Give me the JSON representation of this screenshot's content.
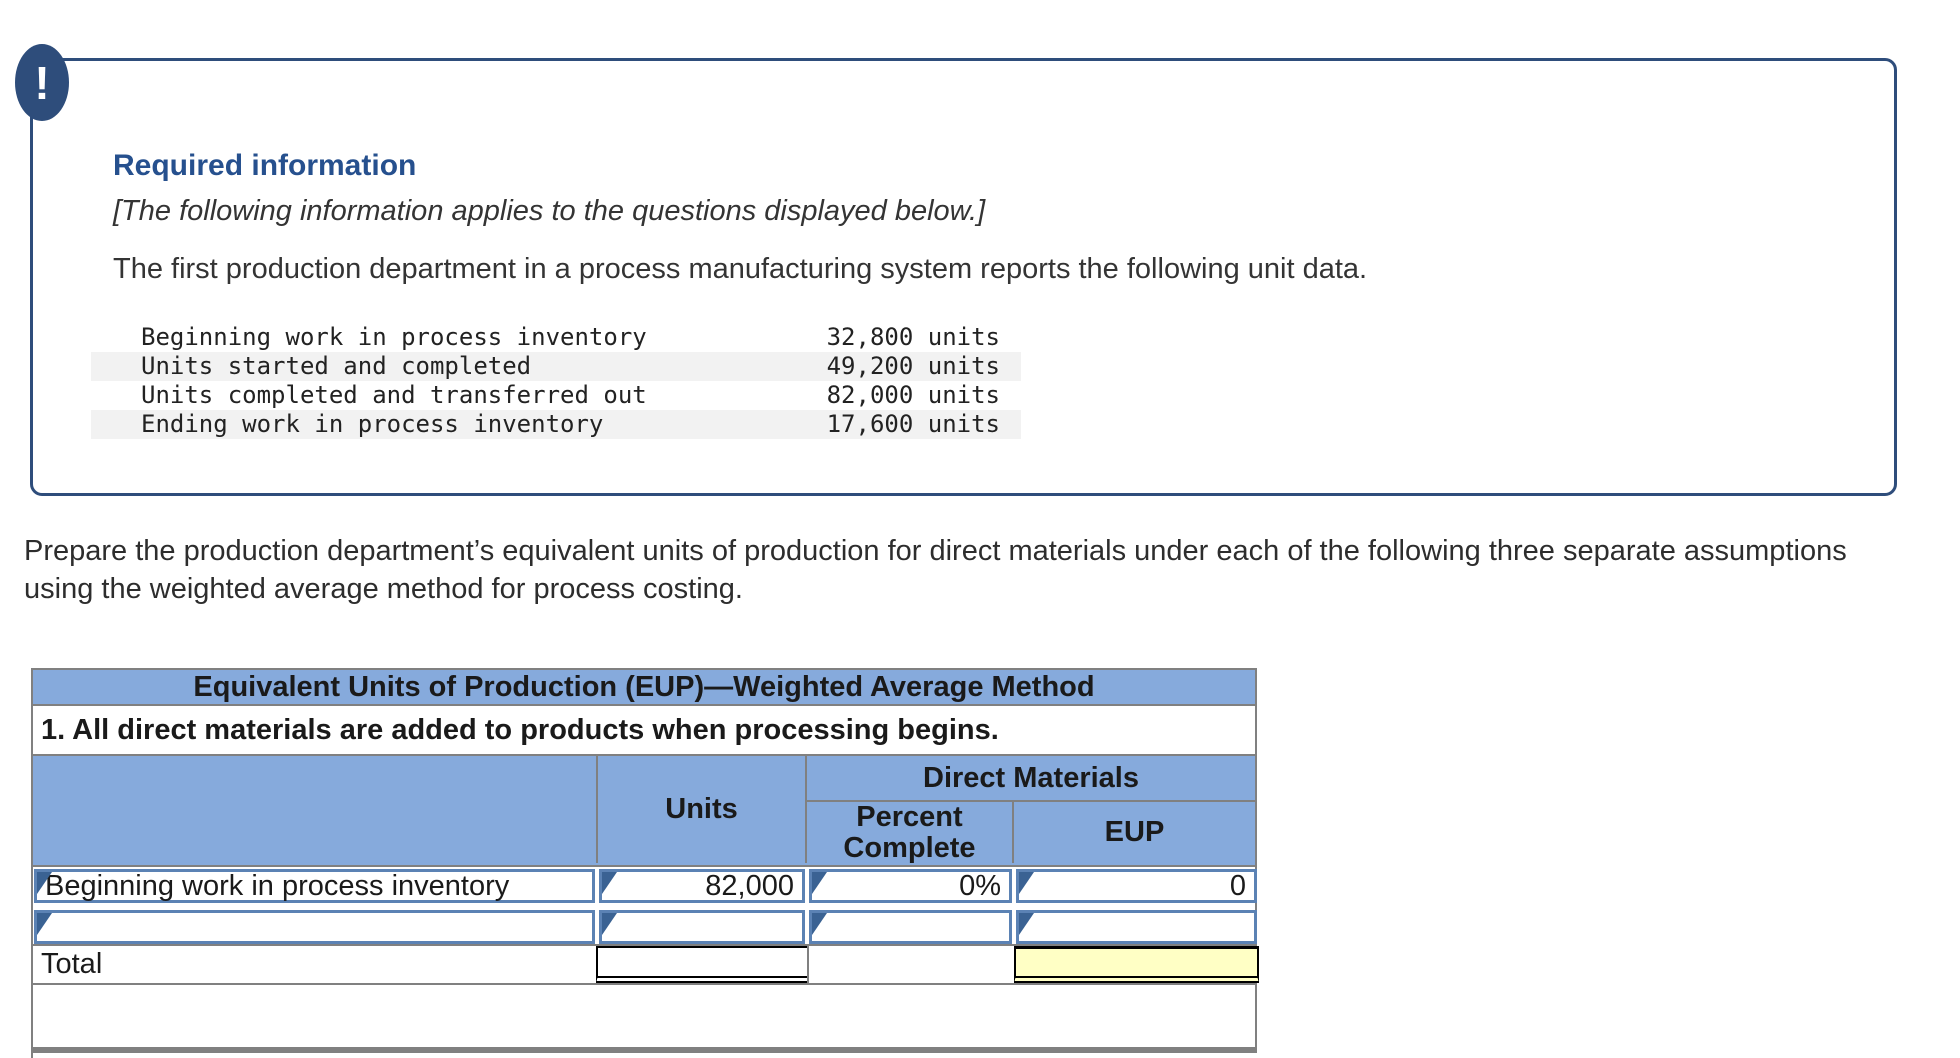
{
  "colors": {
    "box_border": "#2E4D7B",
    "heading_blue": "#26508E",
    "table_header_blue": "#86AADC",
    "input_border_blue": "#5B82B4",
    "input_marker_blue": "#3A6293",
    "highlight_yellow": "#FFFFC5",
    "grid_gray": "#808080",
    "row_shade_gray": "#F2F2F2"
  },
  "info_box": {
    "badge": "!",
    "heading": "Required information",
    "note": "[The following information applies to the questions displayed below.]",
    "intro": "The first production department in a process manufacturing system reports the following unit data.",
    "unit_table": {
      "rows": [
        {
          "label": "Beginning work in process inventory",
          "value": "32,800 units"
        },
        {
          "label": "Units started and completed",
          "value": "49,200 units"
        },
        {
          "label": "Units completed and transferred out",
          "value": "82,000 units"
        },
        {
          "label": "Ending work in process inventory",
          "value": "17,600 units"
        }
      ]
    }
  },
  "question": "Prepare the production department’s equivalent units of production for direct materials under each of the following three separate assumptions using the weighted average method for process costing.",
  "worksheet": {
    "title": "Equivalent Units of Production (EUP)—Weighted Average Method",
    "assumption": "1. All direct materials are added to products when processing begins.",
    "columns": {
      "units": "Units",
      "group": "Direct Materials",
      "percent": "Percent Complete",
      "eup": "EUP"
    },
    "rows": [
      {
        "label": "Beginning work in process inventory",
        "units": "82,000",
        "percent": "0%",
        "eup": "0"
      },
      {
        "label": "",
        "units": "",
        "percent": "",
        "eup": ""
      }
    ],
    "total": {
      "label": "Total",
      "units": "",
      "eup": ""
    }
  }
}
